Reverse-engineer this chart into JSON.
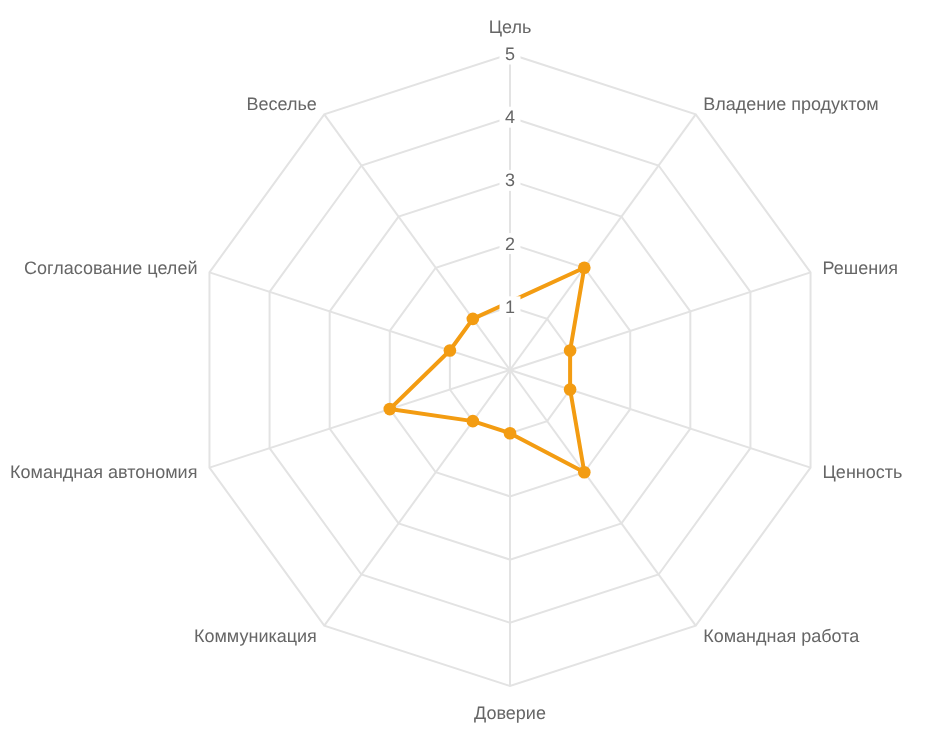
{
  "chart_data": {
    "type": "radar",
    "categories": [
      "Цель",
      "Владение продуктом",
      "Решения",
      "Ценность",
      "Командная работа",
      "Доверие",
      "Коммуникация",
      "Командная автономия",
      "Согласование целей",
      "Веселье"
    ],
    "series": [
      {
        "color": "#f39c12",
        "values": [
          null,
          2,
          1,
          1,
          2,
          1,
          1,
          2,
          1,
          1
        ]
      }
    ],
    "ylim": [
      0,
      5
    ],
    "yticks": [
      1,
      2,
      3,
      4,
      5
    ],
    "grid": true,
    "marker": "circle",
    "line_style": "solid"
  }
}
